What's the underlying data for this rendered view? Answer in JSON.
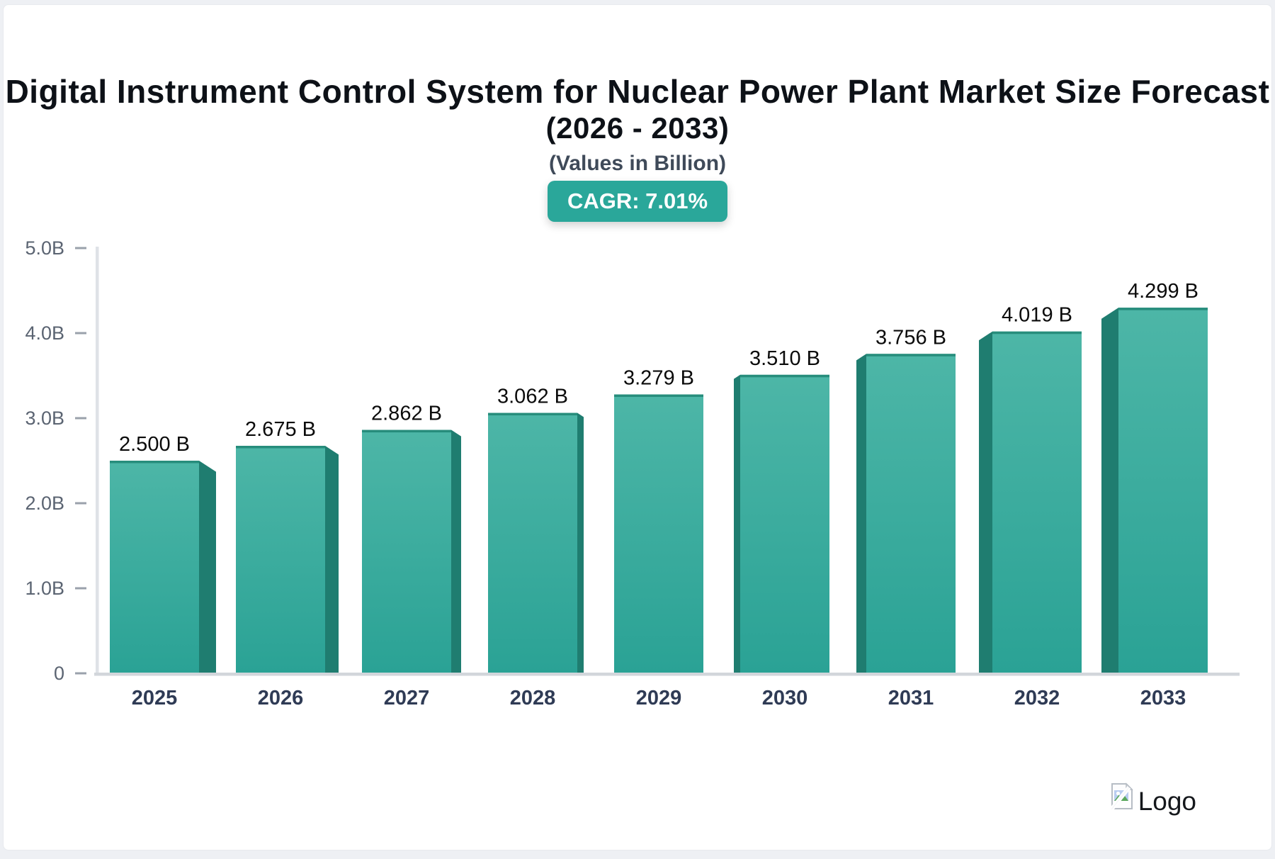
{
  "header": {
    "title_line1": "Digital Instrument Control System for Nuclear Power Plant Market Size Forecast",
    "title_line2": "(2026 - 2033)",
    "subtitle": "(Values in Billion)",
    "cagr_label": "CAGR: 7.01%"
  },
  "footer": {
    "logo_text": "Logo"
  },
  "chart_data": {
    "type": "bar",
    "title": "Digital Instrument Control System for Nuclear Power Plant Market Size Forecast (2026 - 2033)",
    "subtitle": "(Values in Billion)",
    "annotation": "CAGR: 7.01%",
    "categories": [
      "2025",
      "2026",
      "2027",
      "2028",
      "2029",
      "2030",
      "2031",
      "2032",
      "2033"
    ],
    "values": [
      2.5,
      2.675,
      2.862,
      3.062,
      3.279,
      3.51,
      3.756,
      4.019,
      4.299
    ],
    "value_labels": [
      "2.500 B",
      "2.675 B",
      "2.862 B",
      "3.062 B",
      "3.279 B",
      "3.510 B",
      "3.756 B",
      "4.019 B",
      "4.299 B"
    ],
    "xlabel": "",
    "ylabel": "",
    "ylim": [
      0,
      5
    ],
    "y_ticks": [
      {
        "value": 0,
        "label": "0"
      },
      {
        "value": 1,
        "label": "1.0B"
      },
      {
        "value": 2,
        "label": "2.0B"
      },
      {
        "value": 3,
        "label": "3.0B"
      },
      {
        "value": 4,
        "label": "4.0B"
      },
      {
        "value": 5,
        "label": "5.0B"
      }
    ],
    "grid": false,
    "legend": "none",
    "style": "3d-columns",
    "colors": {
      "bar_gradient_top": "#4db6a7",
      "bar_gradient_bottom": "#2aa295",
      "bar_side": "#1f7d70",
      "bar_top_edge": "#238878",
      "axis_vertical": "#dfe2e7",
      "axis_baseline": "#d2d6db",
      "tick": "#9aa1ab",
      "y_label": "#5b6472",
      "x_label": "#2f3b55",
      "value_label": "#0b0b0b",
      "badge": "#2aa79a"
    }
  }
}
